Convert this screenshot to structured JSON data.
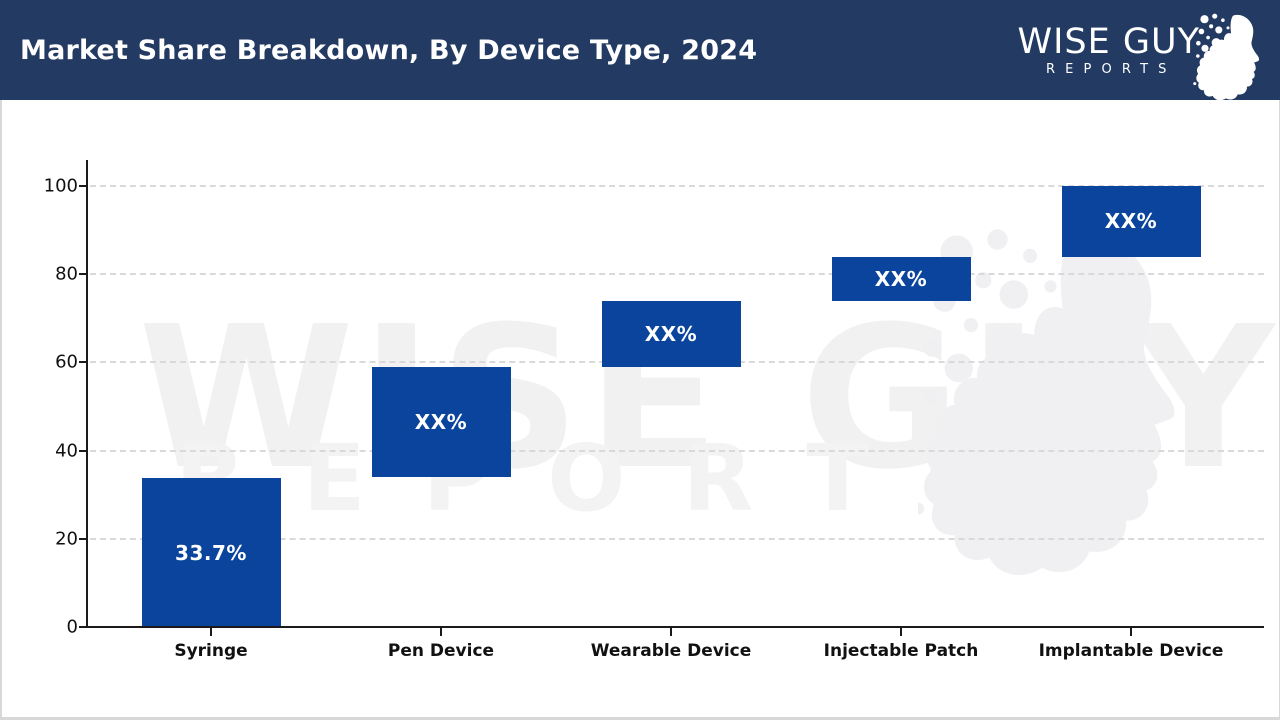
{
  "header": {
    "title": "Market Share Breakdown, By Device Type, 2024",
    "logo": {
      "name": "WISE GUY",
      "tagline": "REPORTS"
    }
  },
  "watermark": {
    "line1": "WISE GUY",
    "line2": "REPORTS"
  },
  "chart_data": {
    "type": "bar",
    "subtype": "floating-waterfall",
    "title": "Market Share Breakdown, By Device Type, 2024",
    "xlabel": "",
    "ylabel": "",
    "categories": [
      "Syringe",
      "Pen Device",
      "Wearable Device",
      "Injectable Patch",
      "Implantable Device"
    ],
    "segments": [
      {
        "category": "Syringe",
        "start": 0,
        "end": 33.7,
        "label": "33.7%"
      },
      {
        "category": "Pen Device",
        "start": 34,
        "end": 59,
        "label": "XX%"
      },
      {
        "category": "Wearable Device",
        "start": 59,
        "end": 74,
        "label": "XX%"
      },
      {
        "category": "Injectable Patch",
        "start": 74,
        "end": 84,
        "label": "XX%"
      },
      {
        "category": "Implantable Device",
        "start": 84,
        "end": 100,
        "label": "XX%"
      }
    ],
    "yticks": [
      0,
      20,
      40,
      60,
      80,
      100
    ],
    "ylim": [
      0,
      106
    ],
    "grid": "dashed-horizontal",
    "legend": "none",
    "bar_color": "#0A449C",
    "bar_label_color": "#FFFFFF"
  },
  "colors": {
    "header_bg": "#233A63",
    "bar": "#0A449C",
    "grid": "#D9D9D9",
    "axis": "#1A1A1A",
    "watermark": "#F1F1F2"
  }
}
